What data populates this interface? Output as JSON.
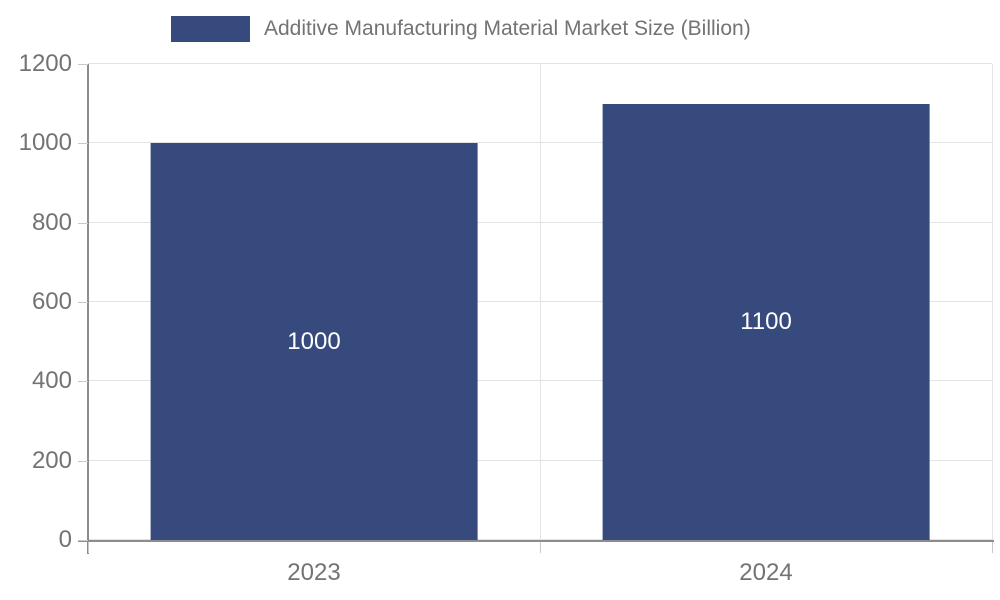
{
  "legend": {
    "label": "Additive Manufacturing Material Market Size (Billion)"
  },
  "colors": {
    "bar": "#374a7d",
    "grid": "#e3e3e3",
    "axis": "#8c8c8c",
    "tick": "#c9c9c9",
    "tick_label": "#737373",
    "bar_label": "#ffffff",
    "background": "#ffffff"
  },
  "chart_data": {
    "type": "bar",
    "categories": [
      "2023",
      "2024"
    ],
    "values": [
      1000,
      1100
    ],
    "bar_labels": [
      "1000",
      "1100"
    ],
    "title": "Additive Manufacturing Material Market Size (Billion)",
    "xlabel": "",
    "ylabel": "",
    "ylim": [
      0,
      1200
    ],
    "yticks": [
      0,
      200,
      400,
      600,
      800,
      1000,
      1200
    ],
    "grid": true,
    "legend_position": "top",
    "bar_band_fraction": 0.723
  }
}
